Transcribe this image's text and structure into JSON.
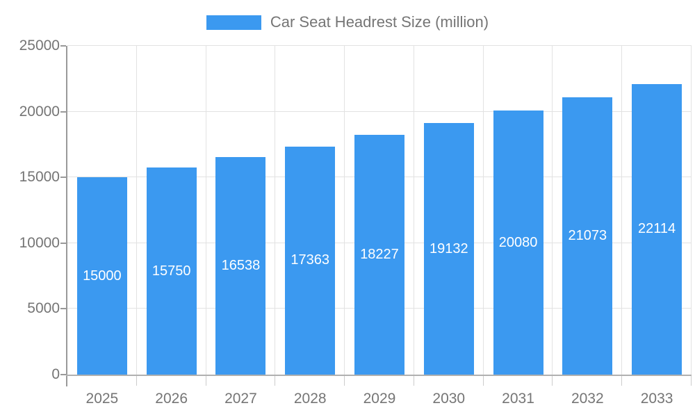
{
  "chart_data": {
    "type": "bar",
    "title": "Car Seat Headrest Size (million)",
    "categories": [
      "2025",
      "2026",
      "2027",
      "2028",
      "2029",
      "2030",
      "2031",
      "2032",
      "2033"
    ],
    "values": [
      15000,
      15750,
      16538,
      17363,
      18227,
      19132,
      20080,
      21073,
      22114
    ],
    "series": [
      {
        "name": "Car Seat Headrest Size (million)",
        "values": [
          15000,
          15750,
          16538,
          17363,
          18227,
          19132,
          20080,
          21073,
          22114
        ]
      }
    ],
    "xlabel": "",
    "ylabel": "",
    "ylim": [
      0,
      25000
    ],
    "yticks": [
      0,
      5000,
      10000,
      15000,
      20000,
      25000
    ],
    "grid": "both",
    "legend_position": "top-center",
    "bar_label_position": "inside-middle",
    "colors": {
      "bar": "#3b99f0",
      "bar_label": "#ffffff",
      "grid_line": "#e2e2e2",
      "y_axis_line": "#999999",
      "x_axis_line": "#b0b0b0",
      "y_tick": "#999999",
      "x_tick": "#cccccc",
      "axis_text": "#757575",
      "legend_text": "#757575",
      "background": "#ffffff"
    }
  }
}
